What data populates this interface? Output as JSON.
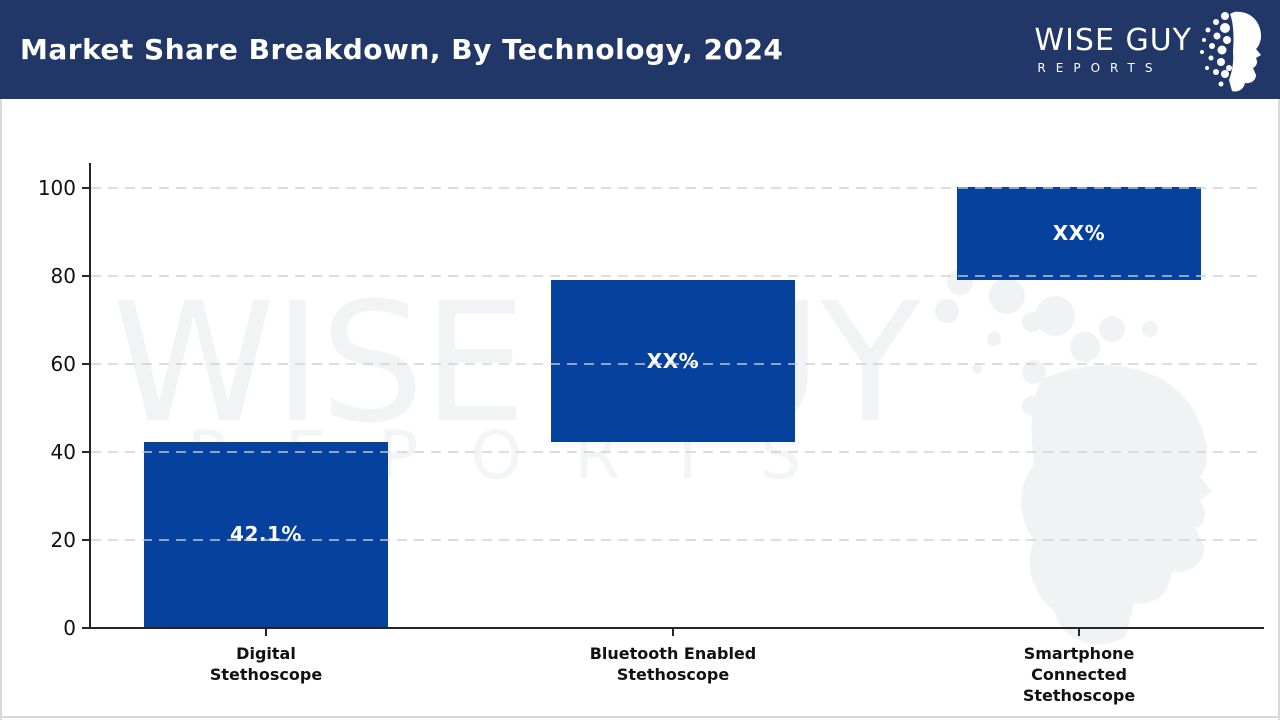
{
  "header": {
    "title": "Market Share Breakdown, By Technology, 2024",
    "logo": {
      "line1": "WISE GUY",
      "line2": "REPORTS"
    }
  },
  "watermark": {
    "line1": "WISE GUY",
    "line2": "REPORTS"
  },
  "chart_data": {
    "type": "bar",
    "variant": "waterfall",
    "title": "Market Share Breakdown, By Technology, 2024",
    "categories": [
      "Digital\nStethoscope",
      "Bluetooth Enabled\nStethoscope",
      "Smartphone\nConnected\nStethoscope"
    ],
    "segments": [
      {
        "category": "Digital Stethoscope",
        "start": 0,
        "end": 42.1,
        "label": "42.1%"
      },
      {
        "category": "Bluetooth Enabled Stethoscope",
        "start": 42.1,
        "end": 78.9,
        "label": "XX%"
      },
      {
        "category": "Smartphone Connected Stethoscope",
        "start": 78.9,
        "end": 100,
        "label": "XX%"
      }
    ],
    "yticks": [
      0,
      20,
      40,
      60,
      80,
      100
    ],
    "ylim": [
      0,
      105
    ],
    "xlabel": "",
    "ylabel": "",
    "grid": "horizontal-dashed",
    "legend": "none",
    "bar_color": "#05419d",
    "bar_label_color": "#ffffff",
    "axis_color": "#262626",
    "gridline_color": "#d5d5d5"
  }
}
